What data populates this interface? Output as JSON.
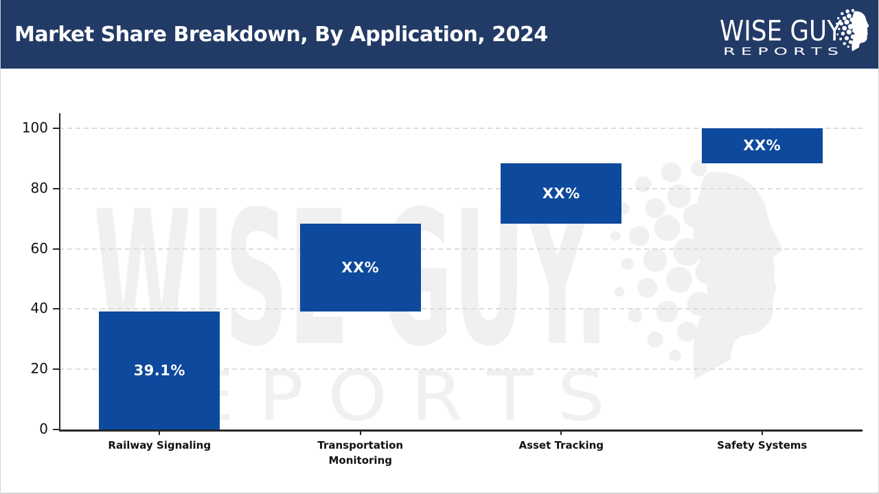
{
  "header": {
    "title": "Market Share Breakdown, By Application, 2024",
    "logo": {
      "wordmark": "WISE GUY",
      "sub": "R E P O R T S"
    }
  },
  "watermark": {
    "line1": "WISE GUY.",
    "line2": "R E P O R T S"
  },
  "colors": {
    "header_bg": "#223A66",
    "bar": "#0D499C",
    "bar_label": "#ffffff",
    "watermark": "#f0f0f0",
    "gridline": "#dcdcdc",
    "axis": "#262626",
    "tick_text": "#111111"
  },
  "chart_data": {
    "type": "bar",
    "subtype": "floating-waterfall",
    "title": "Market Share Breakdown, By Application, 2024",
    "categories": [
      "Railway Signaling",
      "Transportation Monitoring",
      "Asset Tracking",
      "Safety Systems"
    ],
    "bars": [
      {
        "category": "Railway Signaling",
        "start": 0,
        "end": 39.1,
        "label": "39.1%"
      },
      {
        "category": "Transportation Monitoring",
        "start": 39.1,
        "end": 68.4,
        "label": "XX%"
      },
      {
        "category": "Asset Tracking",
        "start": 68.4,
        "end": 88.3,
        "label": "XX%"
      },
      {
        "category": "Safety Systems",
        "start": 88.4,
        "end": 100,
        "label": "XX%"
      }
    ],
    "xlabel": "",
    "ylabel": "",
    "yticks": [
      0,
      20,
      40,
      60,
      80,
      100
    ],
    "ylim": [
      0,
      105
    ],
    "grid": "horizontal-dashed",
    "legend": "none"
  }
}
